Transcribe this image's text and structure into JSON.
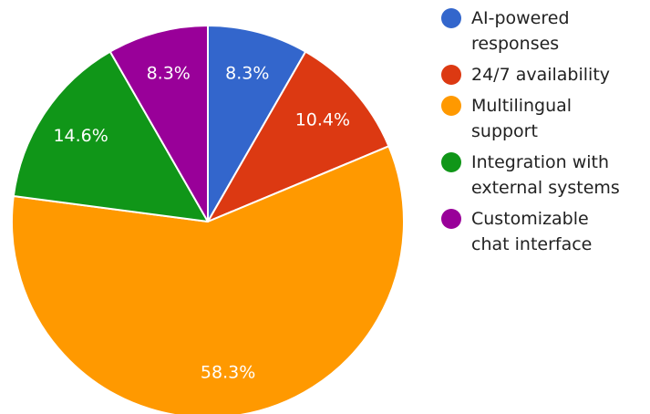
{
  "chart_data": {
    "type": "pie",
    "categories": [
      "AI-powered responses",
      "24/7 availability",
      "Multilingual support",
      "Integration with external systems",
      "Customizable chat interface"
    ],
    "values": [
      8.3,
      10.4,
      58.3,
      14.6,
      8.3
    ],
    "labels": [
      "8.3%",
      "10.4%",
      "58.3%",
      "14.6%",
      "8.3%"
    ],
    "colors": [
      "#3366cc",
      "#dc3912",
      "#ff9900",
      "#109618",
      "#990099"
    ],
    "legend_position": "right"
  },
  "legend": {
    "items": [
      {
        "lines": [
          "AI-powered",
          "responses"
        ],
        "color": "#3366cc",
        "icon": "circle-swatch-icon"
      },
      {
        "lines": [
          "24/7 availability"
        ],
        "color": "#dc3912",
        "icon": "circle-swatch-icon"
      },
      {
        "lines": [
          "Multilingual",
          "support"
        ],
        "color": "#ff9900",
        "icon": "circle-swatch-icon"
      },
      {
        "lines": [
          "Integration with",
          "external systems"
        ],
        "color": "#109618",
        "icon": "circle-swatch-icon"
      },
      {
        "lines": [
          "Customizable",
          "chat interface"
        ],
        "color": "#990099",
        "icon": "circle-swatch-icon"
      }
    ]
  }
}
